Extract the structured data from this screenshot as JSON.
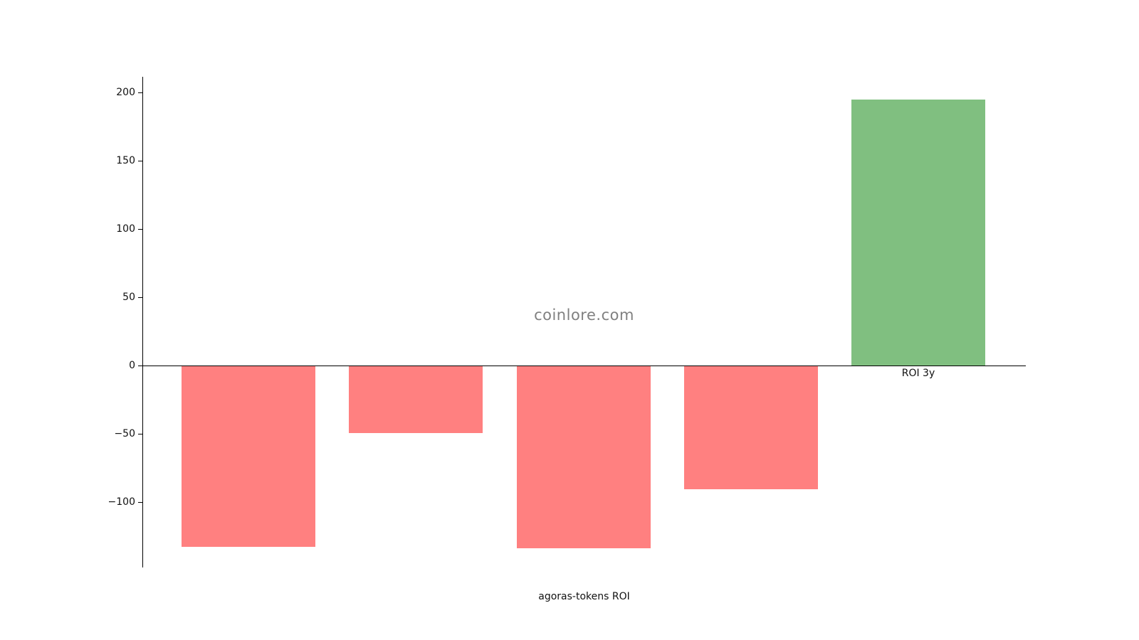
{
  "chart_data": {
    "type": "bar",
    "title": "agoras-tokens ROI",
    "watermark": "coinlore.com",
    "categories": [
      "",
      "",
      "",
      "",
      "ROI 3y"
    ],
    "values": [
      -132,
      -49,
      -133,
      -90,
      195
    ],
    "series": [
      {
        "name": "agoras-tokens ROI",
        "values": [
          -132,
          -49,
          -133,
          -90,
          195
        ]
      }
    ],
    "y_axis": {
      "tick_values": [
        200,
        150,
        100,
        50,
        0,
        -50,
        -100
      ],
      "tick_labels": [
        "200",
        "150",
        "100",
        "50",
        "0",
        "−50",
        "−100"
      ],
      "range": [
        -150,
        212
      ]
    },
    "x_axis": {
      "visible_tick_labels": [
        "ROI 3y"
      ]
    },
    "legend": "none",
    "grid": false,
    "colors": {
      "positive_bar": "#80bf80",
      "negative_bar": "#ff8080",
      "axis": "#000000",
      "watermark": "#808080",
      "text": "#111111"
    }
  }
}
